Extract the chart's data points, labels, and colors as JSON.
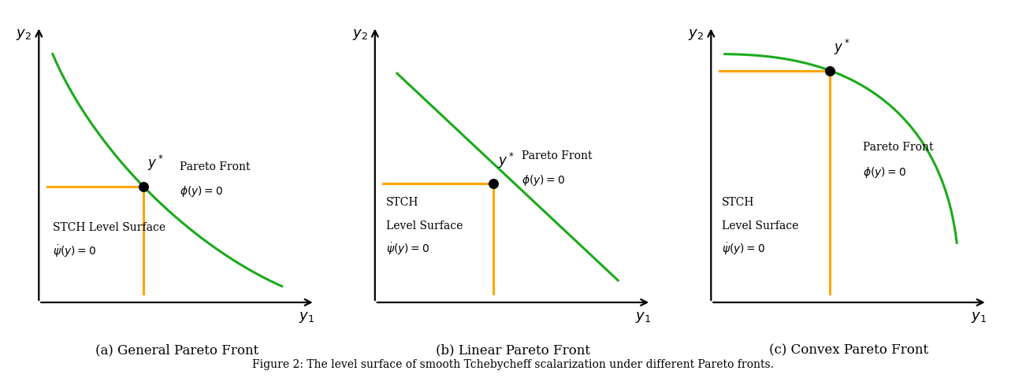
{
  "green_color": "#1aaa1a",
  "orange_color": "#FFA500",
  "dot_color": "#000000",
  "bg_color": "#ffffff",
  "line_width": 2.2,
  "dot_size": 70,
  "subplot_titles": [
    "(a) General Pareto Front",
    "(b) Linear Pareto Front",
    "(c) Convex Pareto Front"
  ],
  "caption": "Figure 2: The level surface of smooth Tchebycheff scalarization under different Pareto fronts.",
  "font_size_axis_label": 13,
  "font_size_caption": 10,
  "font_size_annot": 12,
  "font_size_text": 10,
  "font_size_subtitle": 12
}
